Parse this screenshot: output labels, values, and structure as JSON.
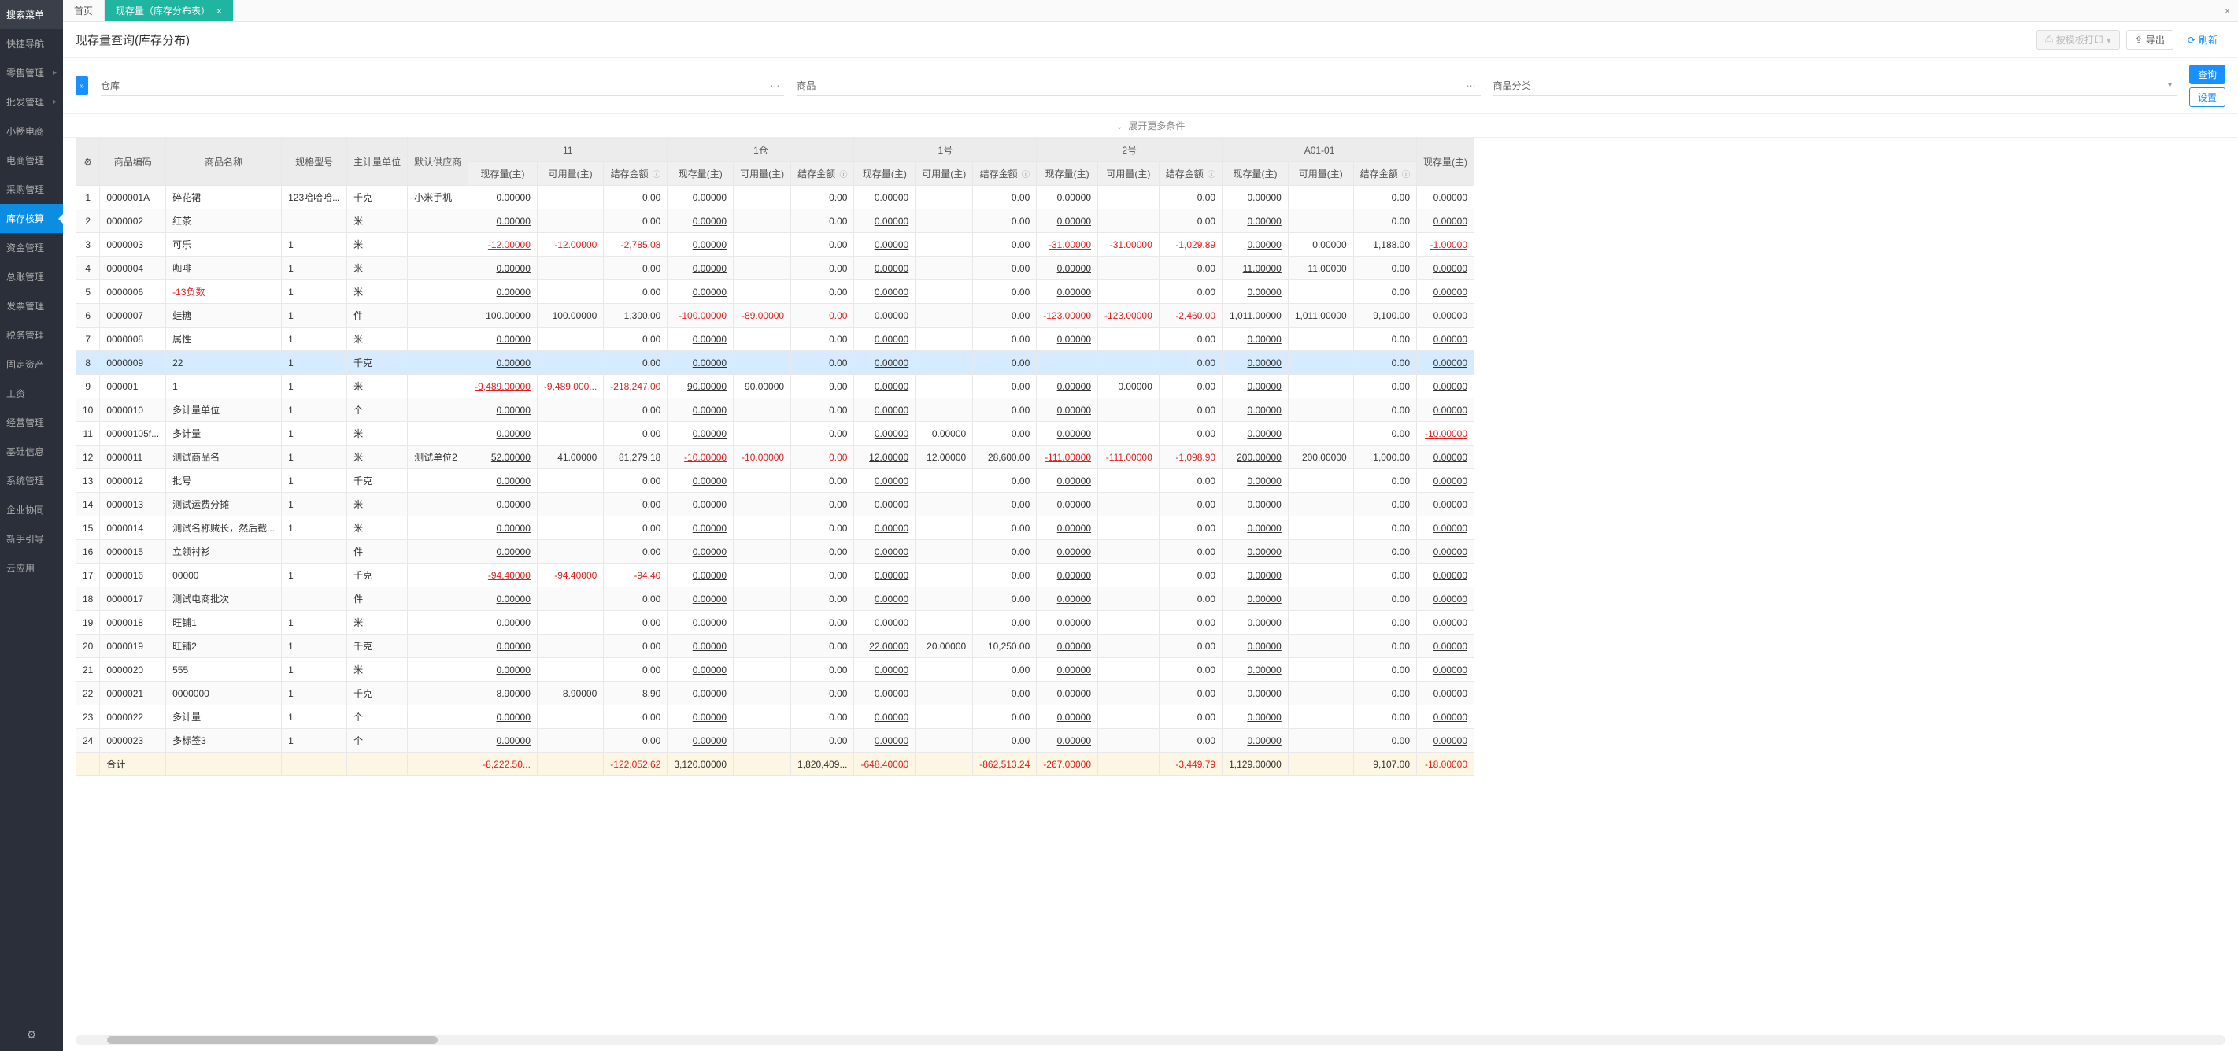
{
  "sidebar": {
    "items": [
      {
        "label": "搜索菜单",
        "chev": false
      },
      {
        "label": "快捷导航",
        "chev": false
      },
      {
        "label": "零售管理",
        "chev": true
      },
      {
        "label": "批发管理",
        "chev": true
      },
      {
        "label": "小畅电商",
        "chev": false
      },
      {
        "label": "电商管理",
        "chev": false
      },
      {
        "label": "采购管理",
        "chev": false
      },
      {
        "label": "库存核算",
        "chev": false,
        "active": true
      },
      {
        "label": "资金管理",
        "chev": false
      },
      {
        "label": "总账管理",
        "chev": false
      },
      {
        "label": "发票管理",
        "chev": false
      },
      {
        "label": "税务管理",
        "chev": false
      },
      {
        "label": "固定资产",
        "chev": false
      },
      {
        "label": "工资",
        "chev": false
      },
      {
        "label": "经营管理",
        "chev": false
      },
      {
        "label": "基础信息",
        "chev": false
      },
      {
        "label": "系统管理",
        "chev": false
      },
      {
        "label": "企业协同",
        "chev": false
      },
      {
        "label": "新手引导",
        "chev": false
      },
      {
        "label": "云应用",
        "chev": false
      }
    ]
  },
  "tabs": [
    {
      "label": "首页",
      "active": false,
      "closable": false
    },
    {
      "label": "现存量（库存分布表）",
      "active": true,
      "closable": true
    }
  ],
  "page": {
    "title": "现存量查询(库存分布)",
    "actions": {
      "print": "按模板打印",
      "export": "导出",
      "refresh": "刷新"
    }
  },
  "filters": {
    "warehouse_label": "仓库",
    "product_label": "商品",
    "category_label": "商品分类",
    "query_btn": "查询",
    "settings_btn": "设置",
    "expand_label": "展开更多条件"
  },
  "table": {
    "group_headers": [
      "11",
      "1仓",
      "1号",
      "2号",
      "A01-01"
    ],
    "sub_headers": {
      "idx": "",
      "gear": "⚙",
      "code": "商品编码",
      "name": "商品名称",
      "spec": "规格型号",
      "unit": "主计量单位",
      "supplier": "默认供应商",
      "stock": "现存量(主)",
      "avail": "可用量(主)",
      "amount": "结存金额",
      "info": "ⓘ"
    },
    "rows": [
      {
        "idx": "1",
        "code": "0000001A",
        "name": "碎花裙",
        "spec": "123哈哈哈...",
        "unit": "千克",
        "supplier": "小米手机",
        "g": [
          [
            "0.00000",
            "",
            "0.00"
          ],
          [
            "0.00000",
            "",
            "0.00"
          ],
          [
            "0.00000",
            "",
            "0.00"
          ],
          [
            "0.00000",
            "",
            "0.00"
          ],
          [
            "0.00000",
            "",
            "0.00"
          ]
        ],
        "ext": "0.00000"
      },
      {
        "idx": "2",
        "code": "0000002",
        "name": "红茶",
        "spec": "",
        "unit": "米",
        "supplier": "",
        "g": [
          [
            "0.00000",
            "",
            "0.00"
          ],
          [
            "0.00000",
            "",
            "0.00"
          ],
          [
            "0.00000",
            "",
            "0.00"
          ],
          [
            "0.00000",
            "",
            "0.00"
          ],
          [
            "0.00000",
            "",
            "0.00"
          ]
        ],
        "ext": "0.00000"
      },
      {
        "idx": "3",
        "code": "0000003",
        "name": "可乐",
        "spec": "1",
        "unit": "米",
        "supplier": "",
        "g": [
          [
            "-12.00000",
            "-12.00000",
            "-2,785.08",
            "r"
          ],
          [
            "0.00000",
            "",
            "0.00"
          ],
          [
            "0.00000",
            "",
            "0.00"
          ],
          [
            "-31.00000",
            "-31.00000",
            "-1,029.89",
            "r"
          ],
          [
            "0.00000",
            "0.00000",
            "1,188.00"
          ]
        ],
        "ext": "-1.00000",
        "extRed": true
      },
      {
        "idx": "4",
        "code": "0000004",
        "name": "咖啡",
        "spec": "1",
        "unit": "米",
        "supplier": "",
        "g": [
          [
            "0.00000",
            "",
            "0.00"
          ],
          [
            "0.00000",
            "",
            "0.00"
          ],
          [
            "0.00000",
            "",
            "0.00"
          ],
          [
            "0.00000",
            "",
            "0.00"
          ],
          [
            "11.00000",
            "11.00000",
            "0.00"
          ]
        ],
        "ext": "0.00000"
      },
      {
        "idx": "5",
        "code": "0000006",
        "name": "-13负数",
        "nameRed": true,
        "spec": "1",
        "unit": "米",
        "supplier": "",
        "g": [
          [
            "0.00000",
            "",
            "0.00"
          ],
          [
            "0.00000",
            "",
            "0.00"
          ],
          [
            "0.00000",
            "",
            "0.00"
          ],
          [
            "0.00000",
            "",
            "0.00"
          ],
          [
            "0.00000",
            "",
            "0.00"
          ]
        ],
        "ext": "0.00000"
      },
      {
        "idx": "6",
        "code": "0000007",
        "name": "蛙糖",
        "spec": "1",
        "unit": "件",
        "supplier": "",
        "g": [
          [
            "100.00000",
            "100.00000",
            "1,300.00"
          ],
          [
            "-100.00000",
            "-89.00000",
            "0.00",
            "r"
          ],
          [
            "0.00000",
            "",
            "0.00"
          ],
          [
            "-123.00000",
            "-123.00000",
            "-2,460.00",
            "r"
          ],
          [
            "1,011.00000",
            "1,011.00000",
            "9,100.00"
          ]
        ],
        "ext": "0.00000"
      },
      {
        "idx": "7",
        "code": "0000008",
        "name": "属性",
        "spec": "1",
        "unit": "米",
        "supplier": "",
        "g": [
          [
            "0.00000",
            "",
            "0.00"
          ],
          [
            "0.00000",
            "",
            "0.00"
          ],
          [
            "0.00000",
            "",
            "0.00"
          ],
          [
            "0.00000",
            "",
            "0.00"
          ],
          [
            "0.00000",
            "",
            "0.00"
          ]
        ],
        "ext": "0.00000"
      },
      {
        "idx": "8",
        "code": "0000009",
        "name": "22",
        "spec": "1",
        "unit": "千克",
        "supplier": "",
        "highlight": true,
        "g": [
          [
            "0.00000",
            "",
            "0.00"
          ],
          [
            "0.00000",
            "",
            "0.00"
          ],
          [
            "0.00000",
            "",
            "0.00"
          ],
          [
            "",
            "",
            "0.00"
          ],
          [
            "0.00000",
            "",
            "0.00"
          ]
        ],
        "ext": "0.00000"
      },
      {
        "idx": "9",
        "code": "000001",
        "name": "1",
        "spec": "1",
        "unit": "米",
        "supplier": "",
        "g": [
          [
            "-9,489.00000",
            "-9,489.000...",
            "-218,247.00",
            "r"
          ],
          [
            "90.00000",
            "90.00000",
            "9.00"
          ],
          [
            "0.00000",
            "",
            "0.00"
          ],
          [
            "0.00000",
            "0.00000",
            "0.00"
          ],
          [
            "0.00000",
            "",
            "0.00"
          ]
        ],
        "ext": "0.00000"
      },
      {
        "idx": "10",
        "code": "0000010",
        "name": "多计量单位",
        "spec": "1",
        "unit": "个",
        "supplier": "",
        "g": [
          [
            "0.00000",
            "",
            "0.00"
          ],
          [
            "0.00000",
            "",
            "0.00"
          ],
          [
            "0.00000",
            "",
            "0.00"
          ],
          [
            "0.00000",
            "",
            "0.00"
          ],
          [
            "0.00000",
            "",
            "0.00"
          ]
        ],
        "ext": "0.00000"
      },
      {
        "idx": "11",
        "code": "00000105f...",
        "name": "多计量",
        "spec": "1",
        "unit": "米",
        "supplier": "",
        "g": [
          [
            "0.00000",
            "",
            "0.00"
          ],
          [
            "0.00000",
            "",
            "0.00"
          ],
          [
            "0.00000",
            "0.00000",
            "0.00"
          ],
          [
            "0.00000",
            "",
            "0.00"
          ],
          [
            "0.00000",
            "",
            "0.00"
          ]
        ],
        "ext": "-10.00000",
        "extRed": true
      },
      {
        "idx": "12",
        "code": "0000011",
        "name": "测试商品名",
        "spec": "1",
        "unit": "米",
        "supplier": "测试单位2",
        "g": [
          [
            "52.00000",
            "41.00000",
            "81,279.18"
          ],
          [
            "-10.00000",
            "-10.00000",
            "0.00",
            "r"
          ],
          [
            "12.00000",
            "12.00000",
            "28,600.00"
          ],
          [
            "-111.00000",
            "-111.00000",
            "-1,098.90",
            "r"
          ],
          [
            "200.00000",
            "200.00000",
            "1,000.00"
          ]
        ],
        "ext": "0.00000"
      },
      {
        "idx": "13",
        "code": "0000012",
        "name": "批号",
        "spec": "1",
        "unit": "千克",
        "supplier": "",
        "g": [
          [
            "0.00000",
            "",
            "0.00"
          ],
          [
            "0.00000",
            "",
            "0.00"
          ],
          [
            "0.00000",
            "",
            "0.00"
          ],
          [
            "0.00000",
            "",
            "0.00"
          ],
          [
            "0.00000",
            "",
            "0.00"
          ]
        ],
        "ext": "0.00000"
      },
      {
        "idx": "14",
        "code": "0000013",
        "name": "测试运费分摊",
        "spec": "1",
        "unit": "米",
        "supplier": "",
        "g": [
          [
            "0.00000",
            "",
            "0.00"
          ],
          [
            "0.00000",
            "",
            "0.00"
          ],
          [
            "0.00000",
            "",
            "0.00"
          ],
          [
            "0.00000",
            "",
            "0.00"
          ],
          [
            "0.00000",
            "",
            "0.00"
          ]
        ],
        "ext": "0.00000"
      },
      {
        "idx": "15",
        "code": "0000014",
        "name": "测试名称贼长，然后截...",
        "spec": "1",
        "unit": "米",
        "supplier": "",
        "g": [
          [
            "0.00000",
            "",
            "0.00"
          ],
          [
            "0.00000",
            "",
            "0.00"
          ],
          [
            "0.00000",
            "",
            "0.00"
          ],
          [
            "0.00000",
            "",
            "0.00"
          ],
          [
            "0.00000",
            "",
            "0.00"
          ]
        ],
        "ext": "0.00000"
      },
      {
        "idx": "16",
        "code": "0000015",
        "name": "立领衬衫",
        "spec": "",
        "unit": "件",
        "supplier": "",
        "g": [
          [
            "0.00000",
            "",
            "0.00"
          ],
          [
            "0.00000",
            "",
            "0.00"
          ],
          [
            "0.00000",
            "",
            "0.00"
          ],
          [
            "0.00000",
            "",
            "0.00"
          ],
          [
            "0.00000",
            "",
            "0.00"
          ]
        ],
        "ext": "0.00000"
      },
      {
        "idx": "17",
        "code": "0000016",
        "name": "00000",
        "spec": "1",
        "unit": "千克",
        "supplier": "",
        "g": [
          [
            "-94.40000",
            "-94.40000",
            "-94.40",
            "r"
          ],
          [
            "0.00000",
            "",
            "0.00"
          ],
          [
            "0.00000",
            "",
            "0.00"
          ],
          [
            "0.00000",
            "",
            "0.00"
          ],
          [
            "0.00000",
            "",
            "0.00"
          ]
        ],
        "ext": "0.00000"
      },
      {
        "idx": "18",
        "code": "0000017",
        "name": "测试电商批次",
        "spec": "",
        "unit": "件",
        "supplier": "",
        "g": [
          [
            "0.00000",
            "",
            "0.00"
          ],
          [
            "0.00000",
            "",
            "0.00"
          ],
          [
            "0.00000",
            "",
            "0.00"
          ],
          [
            "0.00000",
            "",
            "0.00"
          ],
          [
            "0.00000",
            "",
            "0.00"
          ]
        ],
        "ext": "0.00000"
      },
      {
        "idx": "19",
        "code": "0000018",
        "name": "旺铺1",
        "spec": "1",
        "unit": "米",
        "supplier": "",
        "g": [
          [
            "0.00000",
            "",
            "0.00"
          ],
          [
            "0.00000",
            "",
            "0.00"
          ],
          [
            "0.00000",
            "",
            "0.00"
          ],
          [
            "0.00000",
            "",
            "0.00"
          ],
          [
            "0.00000",
            "",
            "0.00"
          ]
        ],
        "ext": "0.00000"
      },
      {
        "idx": "20",
        "code": "0000019",
        "name": "旺铺2",
        "spec": "1",
        "unit": "千克",
        "supplier": "",
        "g": [
          [
            "0.00000",
            "",
            "0.00"
          ],
          [
            "0.00000",
            "",
            "0.00"
          ],
          [
            "22.00000",
            "20.00000",
            "10,250.00"
          ],
          [
            "0.00000",
            "",
            "0.00"
          ],
          [
            "0.00000",
            "",
            "0.00"
          ]
        ],
        "ext": "0.00000"
      },
      {
        "idx": "21",
        "code": "0000020",
        "name": "555",
        "spec": "1",
        "unit": "米",
        "supplier": "",
        "g": [
          [
            "0.00000",
            "",
            "0.00"
          ],
          [
            "0.00000",
            "",
            "0.00"
          ],
          [
            "0.00000",
            "",
            "0.00"
          ],
          [
            "0.00000",
            "",
            "0.00"
          ],
          [
            "0.00000",
            "",
            "0.00"
          ]
        ],
        "ext": "0.00000"
      },
      {
        "idx": "22",
        "code": "0000021",
        "name": "0000000",
        "spec": "1",
        "unit": "千克",
        "supplier": "",
        "g": [
          [
            "8.90000",
            "8.90000",
            "8.90"
          ],
          [
            "0.00000",
            "",
            "0.00"
          ],
          [
            "0.00000",
            "",
            "0.00"
          ],
          [
            "0.00000",
            "",
            "0.00"
          ],
          [
            "0.00000",
            "",
            "0.00"
          ]
        ],
        "ext": "0.00000"
      },
      {
        "idx": "23",
        "code": "0000022",
        "name": "多计量",
        "spec": "1",
        "unit": "个",
        "supplier": "",
        "g": [
          [
            "0.00000",
            "",
            "0.00"
          ],
          [
            "0.00000",
            "",
            "0.00"
          ],
          [
            "0.00000",
            "",
            "0.00"
          ],
          [
            "0.00000",
            "",
            "0.00"
          ],
          [
            "0.00000",
            "",
            "0.00"
          ]
        ],
        "ext": "0.00000"
      },
      {
        "idx": "24",
        "code": "0000023",
        "name": "多标签3",
        "spec": "1",
        "unit": "个",
        "supplier": "",
        "g": [
          [
            "0.00000",
            "",
            "0.00"
          ],
          [
            "0.00000",
            "",
            "0.00"
          ],
          [
            "0.00000",
            "",
            "0.00"
          ],
          [
            "0.00000",
            "",
            "0.00"
          ],
          [
            "0.00000",
            "",
            "0.00"
          ]
        ],
        "ext": "0.00000"
      }
    ],
    "total": {
      "label": "合计",
      "g": [
        [
          "-8,222.50...",
          "",
          "-122,052.62",
          "r"
        ],
        [
          "3,120.00000",
          "",
          "1,820,409...",
          ""
        ],
        [
          "-648.40000",
          "",
          "-862,513.24",
          "r"
        ],
        [
          "-267.00000",
          "",
          "-3,449.79",
          "r"
        ],
        [
          "1,129.00000",
          "",
          "9,107.00"
        ]
      ],
      "ext": "-18.00000",
      "extRed": true
    }
  },
  "colors": {
    "sidebar_bg": "#2a2f3a",
    "active_bg": "#0a8de3",
    "tab_active": "#1fb5a0",
    "primary": "#1890ff",
    "negative": "#e02020",
    "highlight_row": "#d6ebff",
    "total_row": "#fdf6e3"
  }
}
